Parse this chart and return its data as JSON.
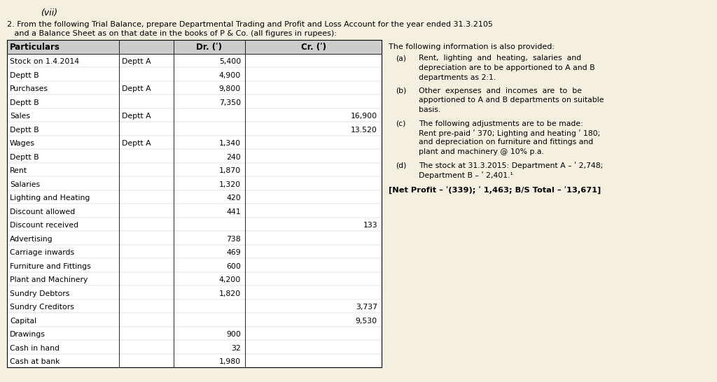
{
  "title_roman": "(vii)",
  "question_line1": "2. From the following Trial Balance, prepare Departmental Trading and Profit and Loss Account for the year ended 31.3.2105",
  "question_line2": "   and a Balance Sheet as on that date in the books of P & Co. (all figures in rupees):",
  "table_rows": [
    [
      "Stock on 1.4.2014",
      "Deptt A",
      "5,400",
      ""
    ],
    [
      "Deptt B",
      "",
      "4,900",
      ""
    ],
    [
      "Purchases",
      "Deptt A",
      "9,800",
      ""
    ],
    [
      "Deptt B",
      "",
      "7,350",
      ""
    ],
    [
      "Sales",
      "Deptt A",
      "",
      "16,900"
    ],
    [
      "Deptt B",
      "",
      "",
      "13.520"
    ],
    [
      "Wages",
      "Deptt A",
      "1,340",
      ""
    ],
    [
      "Deptt B",
      "",
      "240",
      ""
    ],
    [
      "Rent",
      "",
      "1,870",
      ""
    ],
    [
      "Salaries",
      "",
      "1,320",
      ""
    ],
    [
      "Lighting and Heating",
      "",
      "420",
      ""
    ],
    [
      "Discount allowed",
      "",
      "441",
      ""
    ],
    [
      "Discount received",
      "",
      "",
      "133"
    ],
    [
      "Advertising",
      "",
      "738",
      ""
    ],
    [
      "Carriage inwards",
      "",
      "469",
      ""
    ],
    [
      "Furniture and Fittings",
      "",
      "600",
      ""
    ],
    [
      "Plant and Machinery",
      "",
      "4,200",
      ""
    ],
    [
      "Sundry Debtors",
      "",
      "1,820",
      ""
    ],
    [
      "Sundry Creditors",
      "",
      "",
      "3,737"
    ],
    [
      "Capital",
      "",
      "",
      "9,530"
    ],
    [
      "Drawings",
      "",
      "900",
      ""
    ],
    [
      "Cash in hand",
      "",
      "32",
      ""
    ],
    [
      "Cash at bank",
      "",
      "1,980",
      ""
    ]
  ],
  "right_info_header": "The following information is also provided:",
  "right_info": [
    {
      "label": "(a)",
      "lines": [
        "Rent,  lighting  and  heating,  salaries  and",
        "depreciation are to be apportioned to A and B",
        "departments as 2:1."
      ]
    },
    {
      "label": "(b)",
      "lines": [
        "Other  expenses  and  incomes  are  to  be",
        "apportioned to A and B departments on suitable",
        "basis."
      ]
    },
    {
      "label": "(c)",
      "lines": [
        "The following adjustments are to be made:",
        "Rent pre-paid ʹ 370; Lighting and heating ʹ 180;",
        "and depreciation on furniture and fittings and",
        "plant and machinery @ 10% p.a."
      ]
    },
    {
      "label": "(d)",
      "lines": [
        "The stock at 31.3.2015: Department A – ʹ 2,748;",
        "Department B – ʹ 2,401.¹"
      ]
    }
  ],
  "net_profit_line": "[Net Profit – ʹ(339); ʹ 1,463; B/S Total – ʹ13,671]",
  "bg_color": "#f5efe0",
  "table_bg": "#ffffff",
  "header_bg": "#cccccc"
}
